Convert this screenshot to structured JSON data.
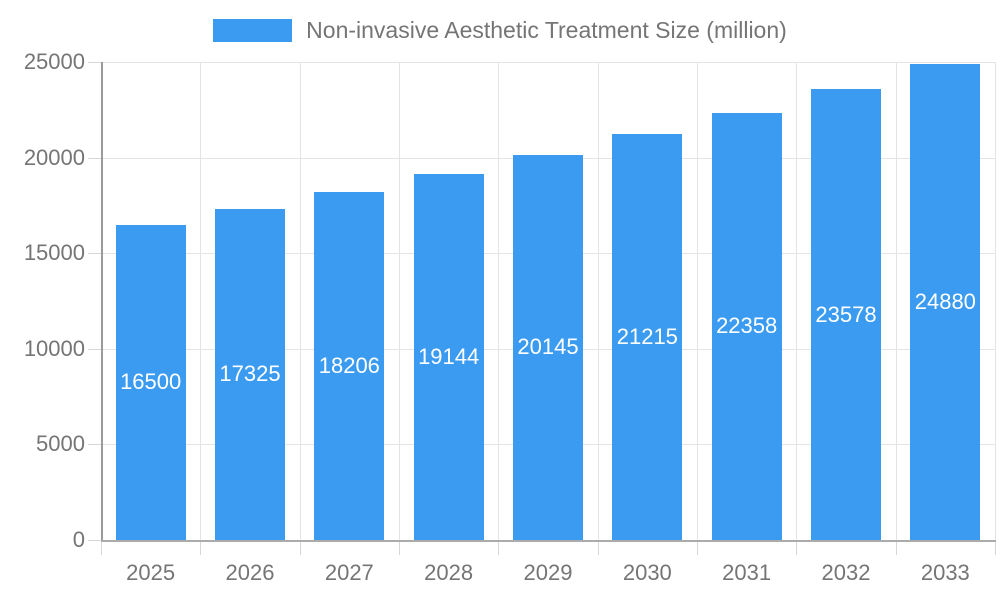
{
  "chart_data": {
    "type": "bar",
    "title": "",
    "legend": "Non-invasive Aesthetic Treatment Size (million)",
    "legend_position": "top",
    "categories": [
      "2025",
      "2026",
      "2027",
      "2028",
      "2029",
      "2030",
      "2031",
      "2032",
      "2033"
    ],
    "series": [
      {
        "name": "Non-invasive Aesthetic Treatment Size (million)",
        "values": [
          16500,
          17325,
          18206,
          19144,
          20145,
          21215,
          22358,
          23578,
          24880
        ]
      }
    ],
    "xlabel": "",
    "ylabel": "",
    "ylim": [
      0,
      25000
    ],
    "yticks": [
      0,
      5000,
      10000,
      15000,
      20000,
      25000
    ],
    "grid": true,
    "bar_color": "#3b9bf0",
    "value_label_color": "#ffffff",
    "axis_text_color": "#757575",
    "gridline_color": "#e4e4e4"
  }
}
